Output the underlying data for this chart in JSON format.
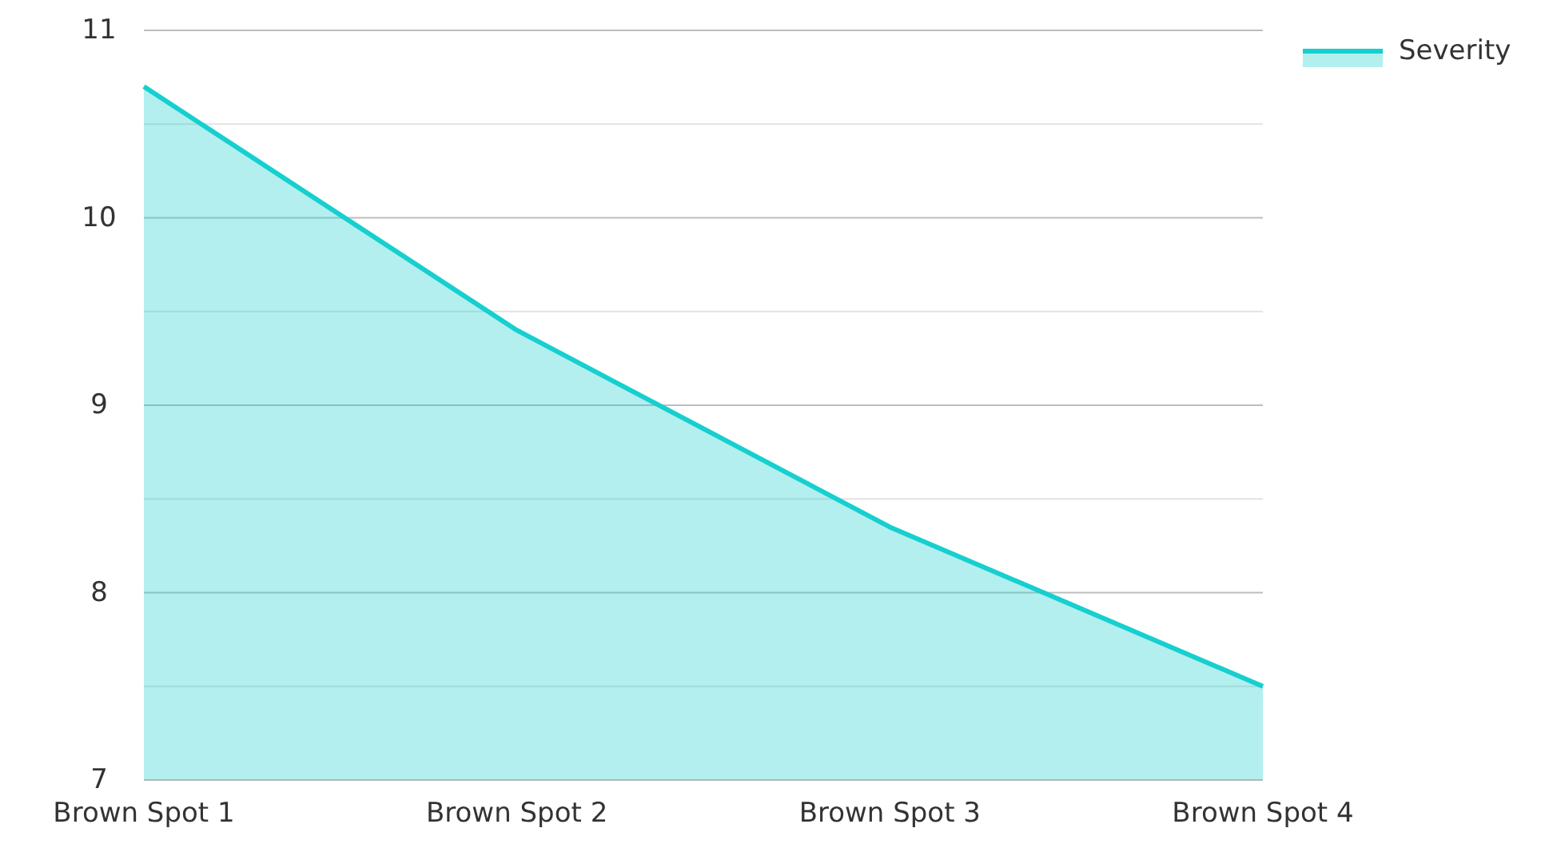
{
  "chart_data": {
    "type": "area",
    "categories": [
      "Brown Spot 1",
      "Brown Spot 2",
      "Brown Spot 3",
      "Brown Spot 4"
    ],
    "series": [
      {
        "name": "Severity",
        "color": "#17cfcf",
        "values": [
          10.7,
          9.4,
          8.35,
          7.5
        ]
      }
    ],
    "ylim": [
      7,
      11
    ],
    "yticks": [
      7,
      {
        "value": 7.5,
        "label": null
      },
      8,
      {
        "value": 8.5,
        "label": null
      },
      9,
      {
        "value": 9.5,
        "label": null
      },
      10,
      {
        "value": 10.5,
        "label": null
      },
      11
    ],
    "grid": "y",
    "legend": "top right"
  }
}
